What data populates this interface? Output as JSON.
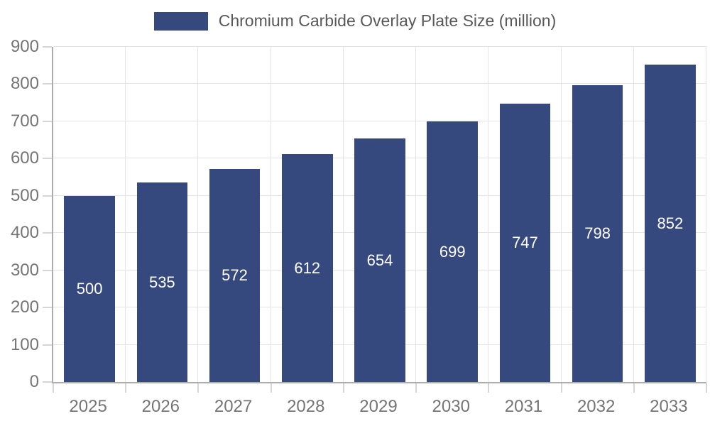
{
  "legend": {
    "label": "Chromium Carbide Overlay Plate Size (million)"
  },
  "colors": {
    "bar": "#36497F",
    "legend_text": "#595959",
    "axis_line": "#adadad",
    "grid_line": "#e4e4e4",
    "tick_mark": "#d6d6d6",
    "axis_label": "#757575",
    "value_label": "#ffffff",
    "background": "#ffffff"
  },
  "chart_data": {
    "type": "bar",
    "title": "",
    "xlabel": "",
    "ylabel": "",
    "categories": [
      "2025",
      "2026",
      "2027",
      "2028",
      "2029",
      "2030",
      "2031",
      "2032",
      "2033"
    ],
    "values": [
      500,
      535,
      572,
      612,
      654,
      699,
      747,
      798,
      852
    ],
    "series_name": "Chromium Carbide Overlay Plate Size (million)",
    "ylim": [
      0,
      900
    ],
    "ytick_interval": 100,
    "ytick_labels": [
      "0",
      "100",
      "200",
      "300",
      "400",
      "500",
      "600",
      "700",
      "800",
      "900"
    ],
    "grid": true,
    "legend_position": "top-center",
    "value_label_position": "inside-center",
    "bar_width_fraction": 0.7
  }
}
